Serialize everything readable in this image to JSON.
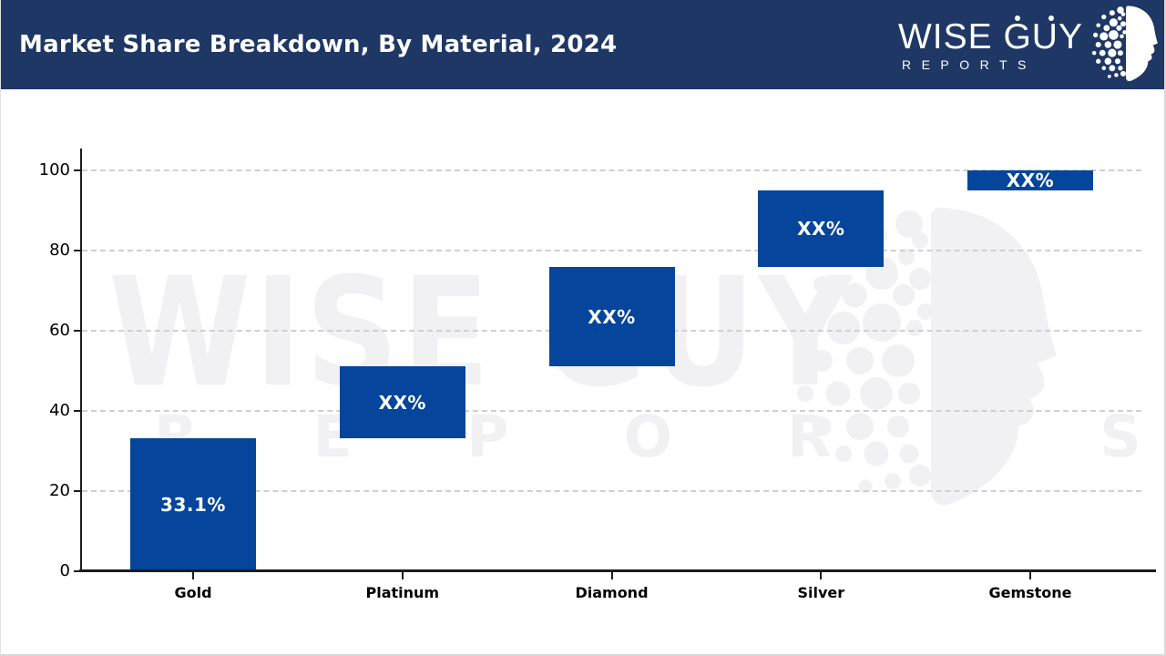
{
  "header": {
    "title": "Market Share Breakdown, By Material, 2024",
    "logo": {
      "line1": "WISE GUY",
      "line2": "REPORTS"
    }
  },
  "watermark": {
    "line1": "WISE GUY",
    "line2": "REPORTS",
    "line2_spaced": "R E P O R T S"
  },
  "colors": {
    "header_bg": "#1f3765",
    "bar": "#05459b",
    "bar_label": "#ffffff",
    "gridline": "#cfcfcf",
    "axis": "#1c1c1c",
    "watermark": "#f1f1f4",
    "title_text": "#ffffff"
  },
  "chart_data": {
    "type": "bar",
    "subtype": "waterfall",
    "title": "Market Share Breakdown, By Material, 2024",
    "categories": [
      "Gold",
      "Platinum",
      "Diamond",
      "Silver",
      "Gemstone"
    ],
    "segments": [
      {
        "category": "Gold",
        "start": 0,
        "end": 33.1,
        "label": "33.1%"
      },
      {
        "category": "Platinum",
        "start": 33.1,
        "end": 51.0,
        "label": "XX%"
      },
      {
        "category": "Diamond",
        "start": 51.0,
        "end": 75.8,
        "label": "XX%"
      },
      {
        "category": "Silver",
        "start": 75.8,
        "end": 95.0,
        "label": "XX%"
      },
      {
        "category": "Gemstone",
        "start": 95.0,
        "end": 100.0,
        "label": "XX%"
      }
    ],
    "xlabel": "",
    "ylabel": "",
    "ylim": [
      0,
      100
    ],
    "yticks": [
      0,
      20,
      40,
      60,
      80,
      100
    ],
    "grid": "horizontal-dashed",
    "legend": "none",
    "bar_color": "#05459b",
    "label_color": "#ffffff"
  }
}
